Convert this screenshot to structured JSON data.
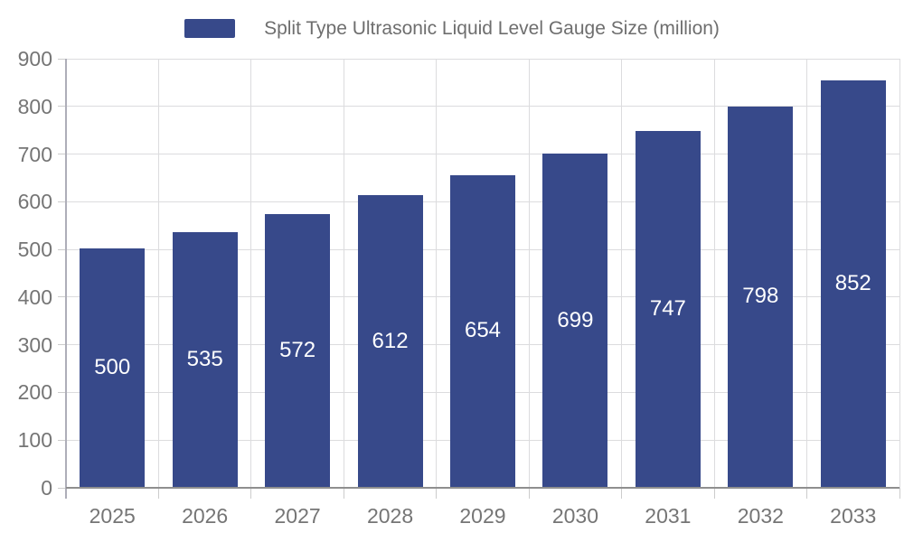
{
  "chart_data": {
    "type": "bar",
    "title": "Split Type Ultrasonic Liquid Level Gauge Size (million)",
    "categories": [
      "2025",
      "2026",
      "2027",
      "2028",
      "2029",
      "2030",
      "2031",
      "2032",
      "2033"
    ],
    "values": [
      500,
      535,
      572,
      612,
      654,
      699,
      747,
      798,
      852
    ],
    "xlabel": "",
    "ylabel": "",
    "ylim": [
      0,
      900
    ],
    "ytick_step": 100,
    "grid": "both",
    "legend_position": "top",
    "bar_labels_inside": true
  },
  "colors": {
    "bar": "#37498A",
    "bar_label_text": "#FFFFFF",
    "axis_tick_text": "#757575",
    "legend_text": "#6E6E6E",
    "gridline": "#DCDCDE",
    "x_axis_line": "#8F8F8F",
    "y_axis_line": "#AEAEB8",
    "tick_mark": "#CCCCCC",
    "background": "#FFFFFF"
  }
}
